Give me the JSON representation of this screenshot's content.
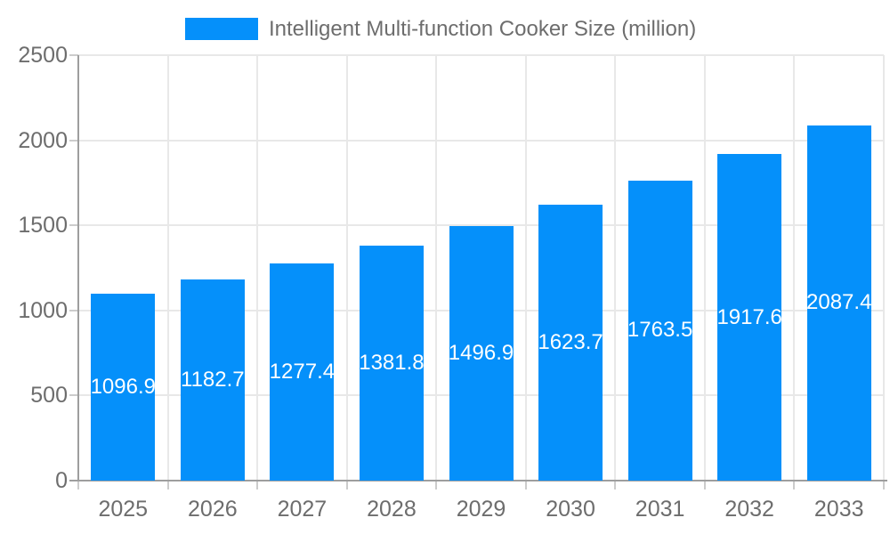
{
  "page": {
    "background": "#ffffff"
  },
  "legend": {
    "label": "Intelligent Multi-function Cooker Size (million)",
    "swatch_color": "#0590fa"
  },
  "chart_data": {
    "type": "bar",
    "title": "Intelligent Multi-function Cooker Size (million)",
    "categories": [
      "2025",
      "2026",
      "2027",
      "2028",
      "2029",
      "2030",
      "2031",
      "2032",
      "2033"
    ],
    "values": [
      1096.9,
      1182.7,
      1277.4,
      1381.8,
      1496.9,
      1623.7,
      1763.5,
      1917.6,
      2087.4
    ],
    "series": [
      {
        "name": "Intelligent Multi-function Cooker Size (million)",
        "values": [
          1096.9,
          1182.7,
          1277.4,
          1381.8,
          1496.9,
          1623.7,
          1763.5,
          1917.6,
          2087.4
        ]
      }
    ],
    "xlabel": "",
    "ylabel": "",
    "ylim": [
      0,
      2500
    ],
    "yticks": [
      0,
      500,
      1000,
      1500,
      2000,
      2500
    ],
    "grid": true,
    "legend_position": "top",
    "value_labels": "inside-center-white",
    "colors": {
      "bar": "#0590fa",
      "value_label": "#ffffff",
      "axis_text": "#6d6d6d",
      "grid_line": "#e8e8e8",
      "axis_line": "#9e9e9e",
      "tick_mark": "#cccccc"
    }
  }
}
